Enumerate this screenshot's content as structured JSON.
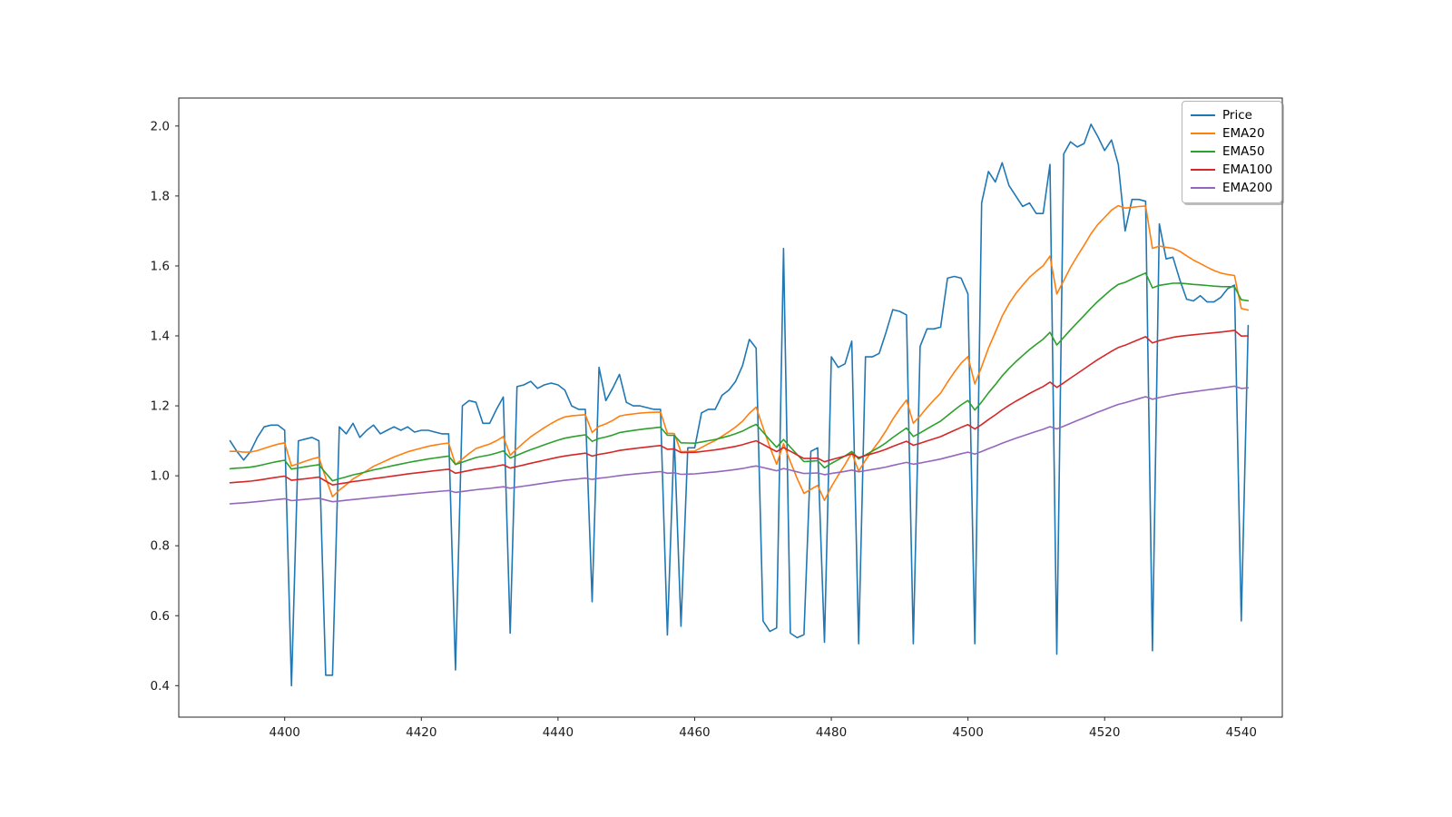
{
  "chart_data": {
    "type": "line",
    "title": "",
    "xlabel": "",
    "ylabel": "",
    "grid": false,
    "legend_position": "upper right",
    "x_start": 4392,
    "x_step": 1,
    "xlim": [
      4384.5,
      4546.0
    ],
    "ylim": [
      0.31,
      2.08
    ],
    "x_ticks": [
      4400,
      4420,
      4440,
      4460,
      4480,
      4500,
      4520,
      4540
    ],
    "y_ticks": [
      0.4,
      0.6,
      0.8,
      1.0,
      1.2,
      1.4,
      1.6,
      1.8,
      2.0
    ],
    "price": [
      1.1,
      1.07,
      1.045,
      1.07,
      1.11,
      1.14,
      1.145,
      1.145,
      1.13,
      0.4,
      1.1,
      1.105,
      1.11,
      1.1,
      0.43,
      0.43,
      1.14,
      1.12,
      1.15,
      1.11,
      1.13,
      1.145,
      1.12,
      1.13,
      1.14,
      1.13,
      1.14,
      1.125,
      1.13,
      1.13,
      1.125,
      1.12,
      1.12,
      0.445,
      1.2,
      1.215,
      1.21,
      1.15,
      1.15,
      1.19,
      1.225,
      0.55,
      1.255,
      1.26,
      1.27,
      1.25,
      1.26,
      1.265,
      1.26,
      1.245,
      1.2,
      1.19,
      1.19,
      0.64,
      1.31,
      1.215,
      1.25,
      1.29,
      1.21,
      1.2,
      1.2,
      1.195,
      1.19,
      1.19,
      0.545,
      1.115,
      0.57,
      1.08,
      1.08,
      1.18,
      1.19,
      1.19,
      1.23,
      1.245,
      1.27,
      1.315,
      1.39,
      1.365,
      0.585,
      0.555,
      0.565,
      1.65,
      0.55,
      0.537,
      0.546,
      1.07,
      1.08,
      0.524,
      1.34,
      1.31,
      1.32,
      1.385,
      0.52,
      1.34,
      1.34,
      1.35,
      1.41,
      1.475,
      1.47,
      1.46,
      0.52,
      1.37,
      1.42,
      1.42,
      1.425,
      1.565,
      1.57,
      1.565,
      1.52,
      0.52,
      1.78,
      1.87,
      1.84,
      1.895,
      1.83,
      1.8,
      1.77,
      1.78,
      1.75,
      1.75,
      1.89,
      0.49,
      1.92,
      1.955,
      1.94,
      1.95,
      2.005,
      1.97,
      1.93,
      1.96,
      1.89,
      1.7,
      1.79,
      1.79,
      1.785,
      0.5,
      1.72,
      1.62,
      1.625,
      1.56,
      1.505,
      1.5,
      1.515,
      1.497,
      1.497,
      1.51,
      1.535,
      1.545,
      0.585,
      1.43
    ],
    "series": [
      {
        "name": "Price",
        "color": "#1f77b4",
        "kind": "price"
      },
      {
        "name": "EMA20",
        "color": "#ff7f0e",
        "kind": "ema",
        "period": 20,
        "seed": 1.07
      },
      {
        "name": "EMA50",
        "color": "#2ca02c",
        "kind": "ema",
        "period": 50,
        "seed": 1.02
      },
      {
        "name": "EMA100",
        "color": "#d62728",
        "kind": "ema",
        "period": 100,
        "seed": 0.98
      },
      {
        "name": "EMA200",
        "color": "#9467bd",
        "kind": "ema",
        "period": 200,
        "seed": 0.92
      }
    ]
  }
}
